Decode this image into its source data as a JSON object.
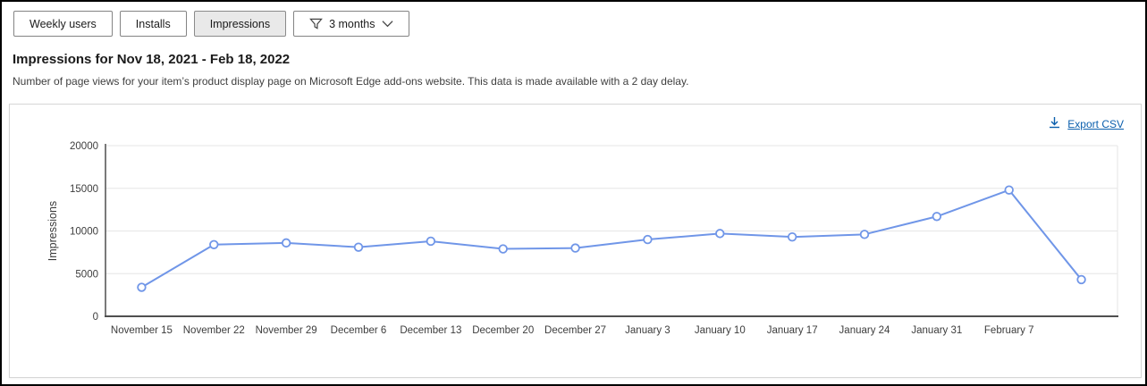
{
  "toolbar": {
    "buttons": [
      {
        "label": "Weekly users",
        "selected": false
      },
      {
        "label": "Installs",
        "selected": false
      },
      {
        "label": "Impressions",
        "selected": true
      }
    ],
    "filter": {
      "label": "3 months"
    }
  },
  "header": {
    "title": "Impressions for Nov 18, 2021 - Feb 18, 2022",
    "description": "Number of page views for your item’s product display page on Microsoft Edge add-ons website. This data is made available with a 2 day delay."
  },
  "panel": {
    "export_label": "Export CSV",
    "link_color": "#0b5fad"
  },
  "chart_data": {
    "type": "line",
    "title": "",
    "xlabel": "",
    "ylabel": "Impressions",
    "ylim": [
      0,
      20000
    ],
    "yticks": [
      0,
      5000,
      10000,
      15000,
      20000
    ],
    "grid": true,
    "legend_position": "none",
    "line_color": "#7096e8",
    "marker": "open-circle",
    "categories": [
      "November 15",
      "November 22",
      "November 29",
      "December 6",
      "December 13",
      "December 20",
      "December 27",
      "January 3",
      "January 10",
      "January 17",
      "January 24",
      "January 31",
      "February 7",
      ""
    ],
    "values": [
      3400,
      8400,
      8600,
      8100,
      8800,
      7900,
      8000,
      9000,
      9700,
      9300,
      9600,
      11700,
      14800,
      4300
    ]
  }
}
